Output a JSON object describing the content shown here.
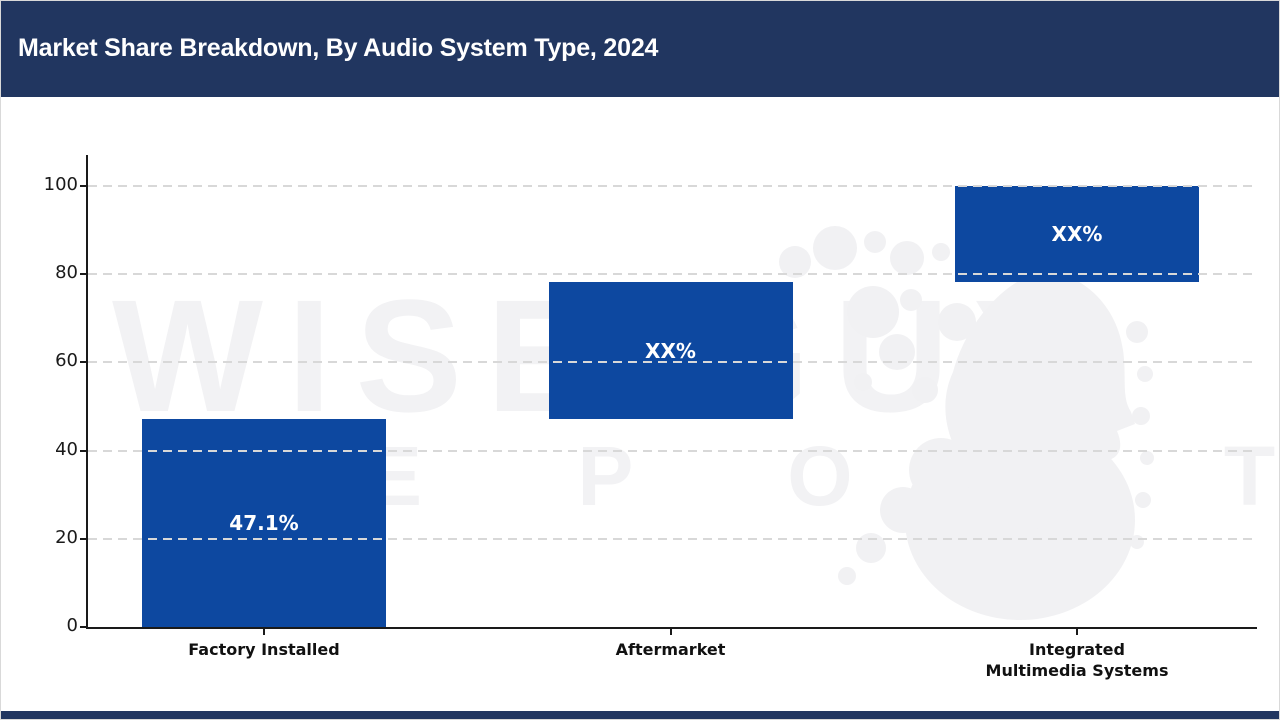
{
  "header": {
    "title": "Market Share Breakdown, By Audio System Type, 2024",
    "logo": {
      "name_line": "WISE GUY",
      "reports_line": "R E P O R T S"
    }
  },
  "watermark": {
    "line1": "WISE GUY",
    "line2": "R E P O R T S"
  },
  "chart_data": {
    "type": "bar",
    "subtype": "floating-waterfall",
    "title": "Market Share Breakdown, By Audio System Type, 2024",
    "categories": [
      "Factory Installed",
      "Aftermarket",
      "Integrated Multimedia Systems"
    ],
    "category_label_lines": [
      [
        "Factory Installed"
      ],
      [
        "Aftermarket"
      ],
      [
        "Integrated",
        "Multimedia Systems"
      ]
    ],
    "segments": [
      {
        "category": "Factory Installed",
        "start": 0,
        "end": 47.1,
        "label": "47.1%"
      },
      {
        "category": "Aftermarket",
        "start": 47.1,
        "end": 78.2,
        "label": "XX%"
      },
      {
        "category": "Integrated Multimedia Systems",
        "start": 78.2,
        "end": 100,
        "label": "XX%"
      }
    ],
    "ylim": [
      0,
      100
    ],
    "yticks": [
      0,
      20,
      40,
      60,
      80,
      100
    ],
    "grid": "horizontal-dashed",
    "legend": "none",
    "bar_color": "#0D48A0",
    "bar_label_color": "#FFFFFF"
  },
  "colors": {
    "header_bg": "#213660",
    "footer_bg": "#213660",
    "bar": "#0D48A0",
    "grid": "#D8D8D8",
    "axis": "#1A1A1A",
    "watermark": "#F2F2F4",
    "page_border": "#D9D9D9"
  }
}
